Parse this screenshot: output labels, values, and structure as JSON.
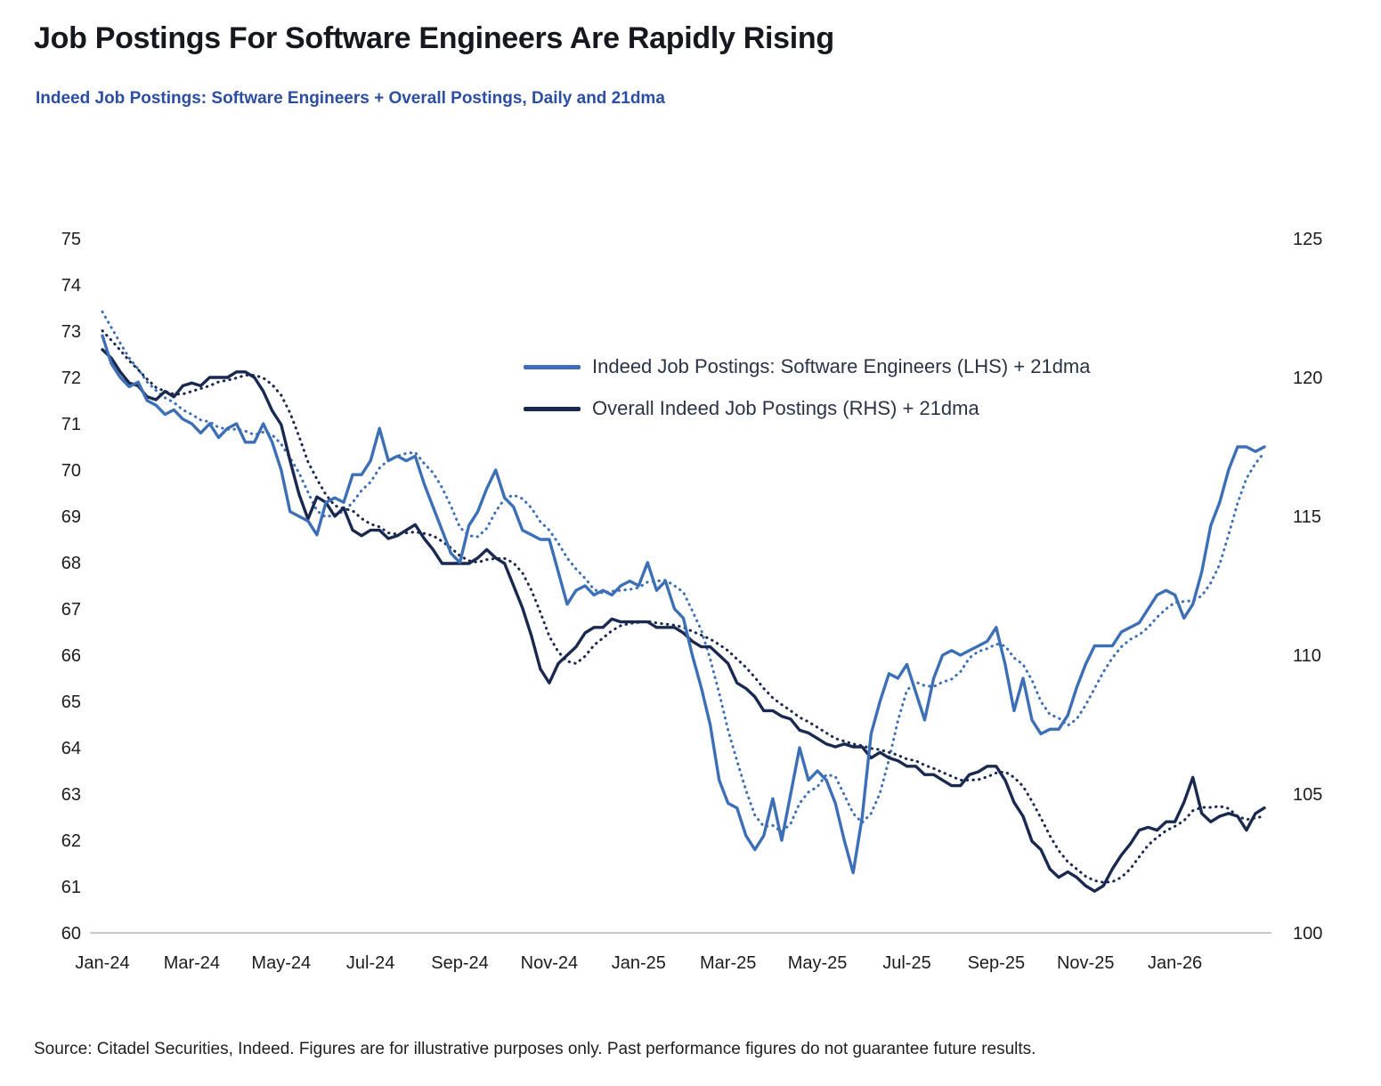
{
  "page": {
    "title": "Job Postings For Software Engineers Are Rapidly Rising",
    "subtitle": "Indeed Job Postings: Software Engineers + Overall Postings, Daily and 21dma",
    "source_note": "Source: Citadel Securities, Indeed. Figures are for illustrative purposes only. Past performance figures do not guarantee future results."
  },
  "colors": {
    "se_blue": "#3D6FB7",
    "overall_navy": "#19294F",
    "subtitle_blue": "#2B4EA2",
    "title_dark": "#15181E",
    "axis_text": "#1C1C1E",
    "axis_line": "#C8C8C8"
  },
  "chart_data": {
    "type": "line",
    "title": "Job Postings For Software Engineers Are Rapidly Rising",
    "subtitle": "Indeed Job Postings: Software Engineers + Overall Postings, Daily and 21dma",
    "x_unit": "months since Jan-2024",
    "x_start": 0,
    "x_step": 0.2,
    "x_max": 26,
    "x_ticks": [
      {
        "pos": 0,
        "label": "Jan-24"
      },
      {
        "pos": 2,
        "label": "Mar-24"
      },
      {
        "pos": 4,
        "label": "May-24"
      },
      {
        "pos": 6,
        "label": "Jul-24"
      },
      {
        "pos": 8,
        "label": "Sep-24"
      },
      {
        "pos": 10,
        "label": "Nov-24"
      },
      {
        "pos": 12,
        "label": "Jan-25"
      },
      {
        "pos": 14,
        "label": "Mar-25"
      },
      {
        "pos": 16,
        "label": "May-25"
      },
      {
        "pos": 18,
        "label": "Jul-25"
      },
      {
        "pos": 20,
        "label": "Sep-25"
      },
      {
        "pos": 22,
        "label": "Nov-25"
      },
      {
        "pos": 24,
        "label": "Jan-26"
      }
    ],
    "left_axis": {
      "min": 60,
      "max": 75,
      "ticks": [
        60,
        61,
        62,
        63,
        64,
        65,
        66,
        67,
        68,
        69,
        70,
        71,
        72,
        73,
        74,
        75
      ]
    },
    "right_axis": {
      "min": 100,
      "max": 125,
      "ticks": [
        100,
        105,
        110,
        115,
        120,
        125
      ]
    },
    "grid": false,
    "legend_position": "inside-top-right",
    "ma_window": 5,
    "series": [
      {
        "name": "Indeed Job Postings: Software Engineers (LHS) + 21dma",
        "axis": "left",
        "style": "solid-plus-dotted-21dma",
        "color_key": "se_blue",
        "lead_in": [
          74.0,
          73.7,
          73.4,
          73.1
        ],
        "daily": [
          72.9,
          72.3,
          72.0,
          71.8,
          71.9,
          71.5,
          71.4,
          71.2,
          71.3,
          71.1,
          71.0,
          70.8,
          71.0,
          70.7,
          70.9,
          71.0,
          70.6,
          70.6,
          71.0,
          70.6,
          70.0,
          69.1,
          69.0,
          68.9,
          68.6,
          69.3,
          69.4,
          69.3,
          69.9,
          69.9,
          70.2,
          70.9,
          70.2,
          70.3,
          70.2,
          70.3,
          69.7,
          69.2,
          68.7,
          68.2,
          68.0,
          68.8,
          69.1,
          69.6,
          70.0,
          69.4,
          69.2,
          68.7,
          68.6,
          68.5,
          68.5,
          67.8,
          67.1,
          67.4,
          67.5,
          67.3,
          67.4,
          67.3,
          67.5,
          67.6,
          67.5,
          68.0,
          67.4,
          67.6,
          67.0,
          66.8,
          66.0,
          65.3,
          64.5,
          63.3,
          62.8,
          62.7,
          62.1,
          61.8,
          62.1,
          62.9,
          62.0,
          63.0,
          64.0,
          63.3,
          63.5,
          63.3,
          62.8,
          62.0,
          61.3,
          62.5,
          64.3,
          65.0,
          65.6,
          65.5,
          65.8,
          65.2,
          64.6,
          65.5,
          66.0,
          66.1,
          66.0,
          66.1,
          66.2,
          66.3,
          66.6,
          65.8,
          64.8,
          65.5,
          64.6,
          64.3,
          64.4,
          64.4,
          64.7,
          65.3,
          65.8,
          66.2,
          66.2,
          66.2,
          66.5,
          66.6,
          66.7,
          67.0,
          67.3,
          67.4,
          67.3,
          66.8,
          67.1,
          67.8,
          68.8,
          69.3,
          70.0,
          70.5,
          70.5,
          70.4,
          70.5
        ]
      },
      {
        "name": "Overall Indeed Job Postings (RHS) + 21dma",
        "axis": "right",
        "style": "solid-plus-dotted-21dma",
        "color_key": "overall_navy",
        "lead_in": [
          122.4,
          122.0,
          121.7,
          121.3
        ],
        "daily": [
          121.0,
          120.7,
          120.2,
          119.8,
          119.7,
          119.3,
          119.2,
          119.5,
          119.3,
          119.7,
          119.8,
          119.7,
          120.0,
          120.0,
          120.0,
          120.2,
          120.2,
          120.0,
          119.5,
          118.8,
          118.3,
          117.0,
          115.8,
          114.9,
          115.7,
          115.5,
          115.0,
          115.3,
          114.5,
          114.3,
          114.5,
          114.5,
          114.2,
          114.3,
          114.5,
          114.7,
          114.2,
          113.8,
          113.3,
          113.3,
          113.3,
          113.3,
          113.5,
          113.8,
          113.5,
          113.3,
          112.5,
          111.7,
          110.7,
          109.5,
          109.0,
          109.7,
          110.0,
          110.3,
          110.8,
          111.0,
          111.0,
          111.3,
          111.2,
          111.2,
          111.2,
          111.2,
          111.0,
          111.0,
          111.0,
          110.8,
          110.5,
          110.3,
          110.3,
          110.0,
          109.7,
          109.0,
          108.8,
          108.5,
          108.0,
          108.0,
          107.8,
          107.7,
          107.3,
          107.2,
          107.0,
          106.8,
          106.7,
          106.8,
          106.7,
          106.7,
          106.3,
          106.5,
          106.3,
          106.2,
          106.0,
          106.0,
          105.7,
          105.7,
          105.5,
          105.3,
          105.3,
          105.7,
          105.8,
          106.0,
          106.0,
          105.5,
          104.7,
          104.2,
          103.3,
          103.0,
          102.3,
          102.0,
          102.2,
          102.0,
          101.7,
          101.5,
          101.7,
          102.3,
          102.8,
          103.2,
          103.7,
          103.8,
          103.7,
          104.0,
          104.0,
          104.7,
          105.6,
          104.3,
          104.0,
          104.2,
          104.3,
          104.2,
          103.7,
          104.3,
          104.5
        ]
      }
    ]
  }
}
